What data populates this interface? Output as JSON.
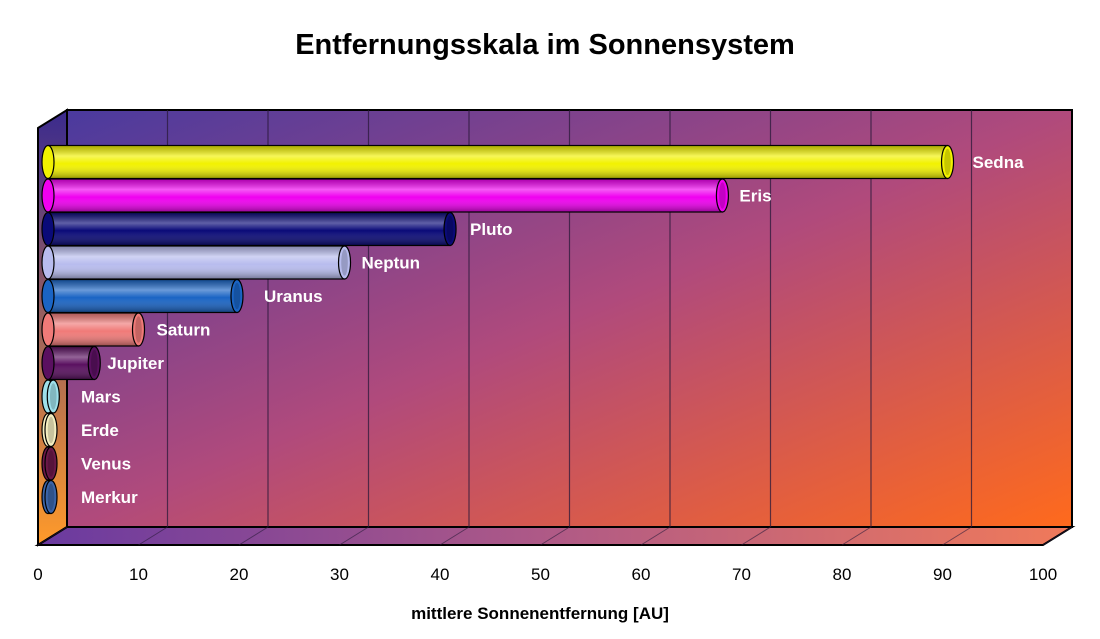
{
  "chart_data": {
    "type": "bar",
    "orientation": "horizontal",
    "style": "3d-cylinder",
    "title": "Entfernungsskala im Sonnensystem",
    "xlabel": "mittlere Sonnenentfernung [AU]",
    "ylabel": "",
    "xlim": [
      0,
      100
    ],
    "xticks": [
      "0",
      "10",
      "20",
      "30",
      "40",
      "50",
      "60",
      "70",
      "80",
      "90",
      "100"
    ],
    "grid": true,
    "legend": "none",
    "categories": [
      "Sedna",
      "Eris",
      "Pluto",
      "Neptun",
      "Uranus",
      "Saturn",
      "Jupiter",
      "Mars",
      "Erde",
      "Venus",
      "Merkur"
    ],
    "values": [
      90.5,
      68.1,
      41.0,
      30.5,
      19.8,
      10.0,
      5.6,
      1.52,
      1.0,
      0.72,
      0.39
    ],
    "colors": [
      "#f2f200",
      "#f000f0",
      "#0a0a78",
      "#b8bcee",
      "#1a64c4",
      "#f07a78",
      "#5a1060",
      "#9ee0ea",
      "#f4eec0",
      "#6a1848",
      "#3a64a8"
    ]
  }
}
